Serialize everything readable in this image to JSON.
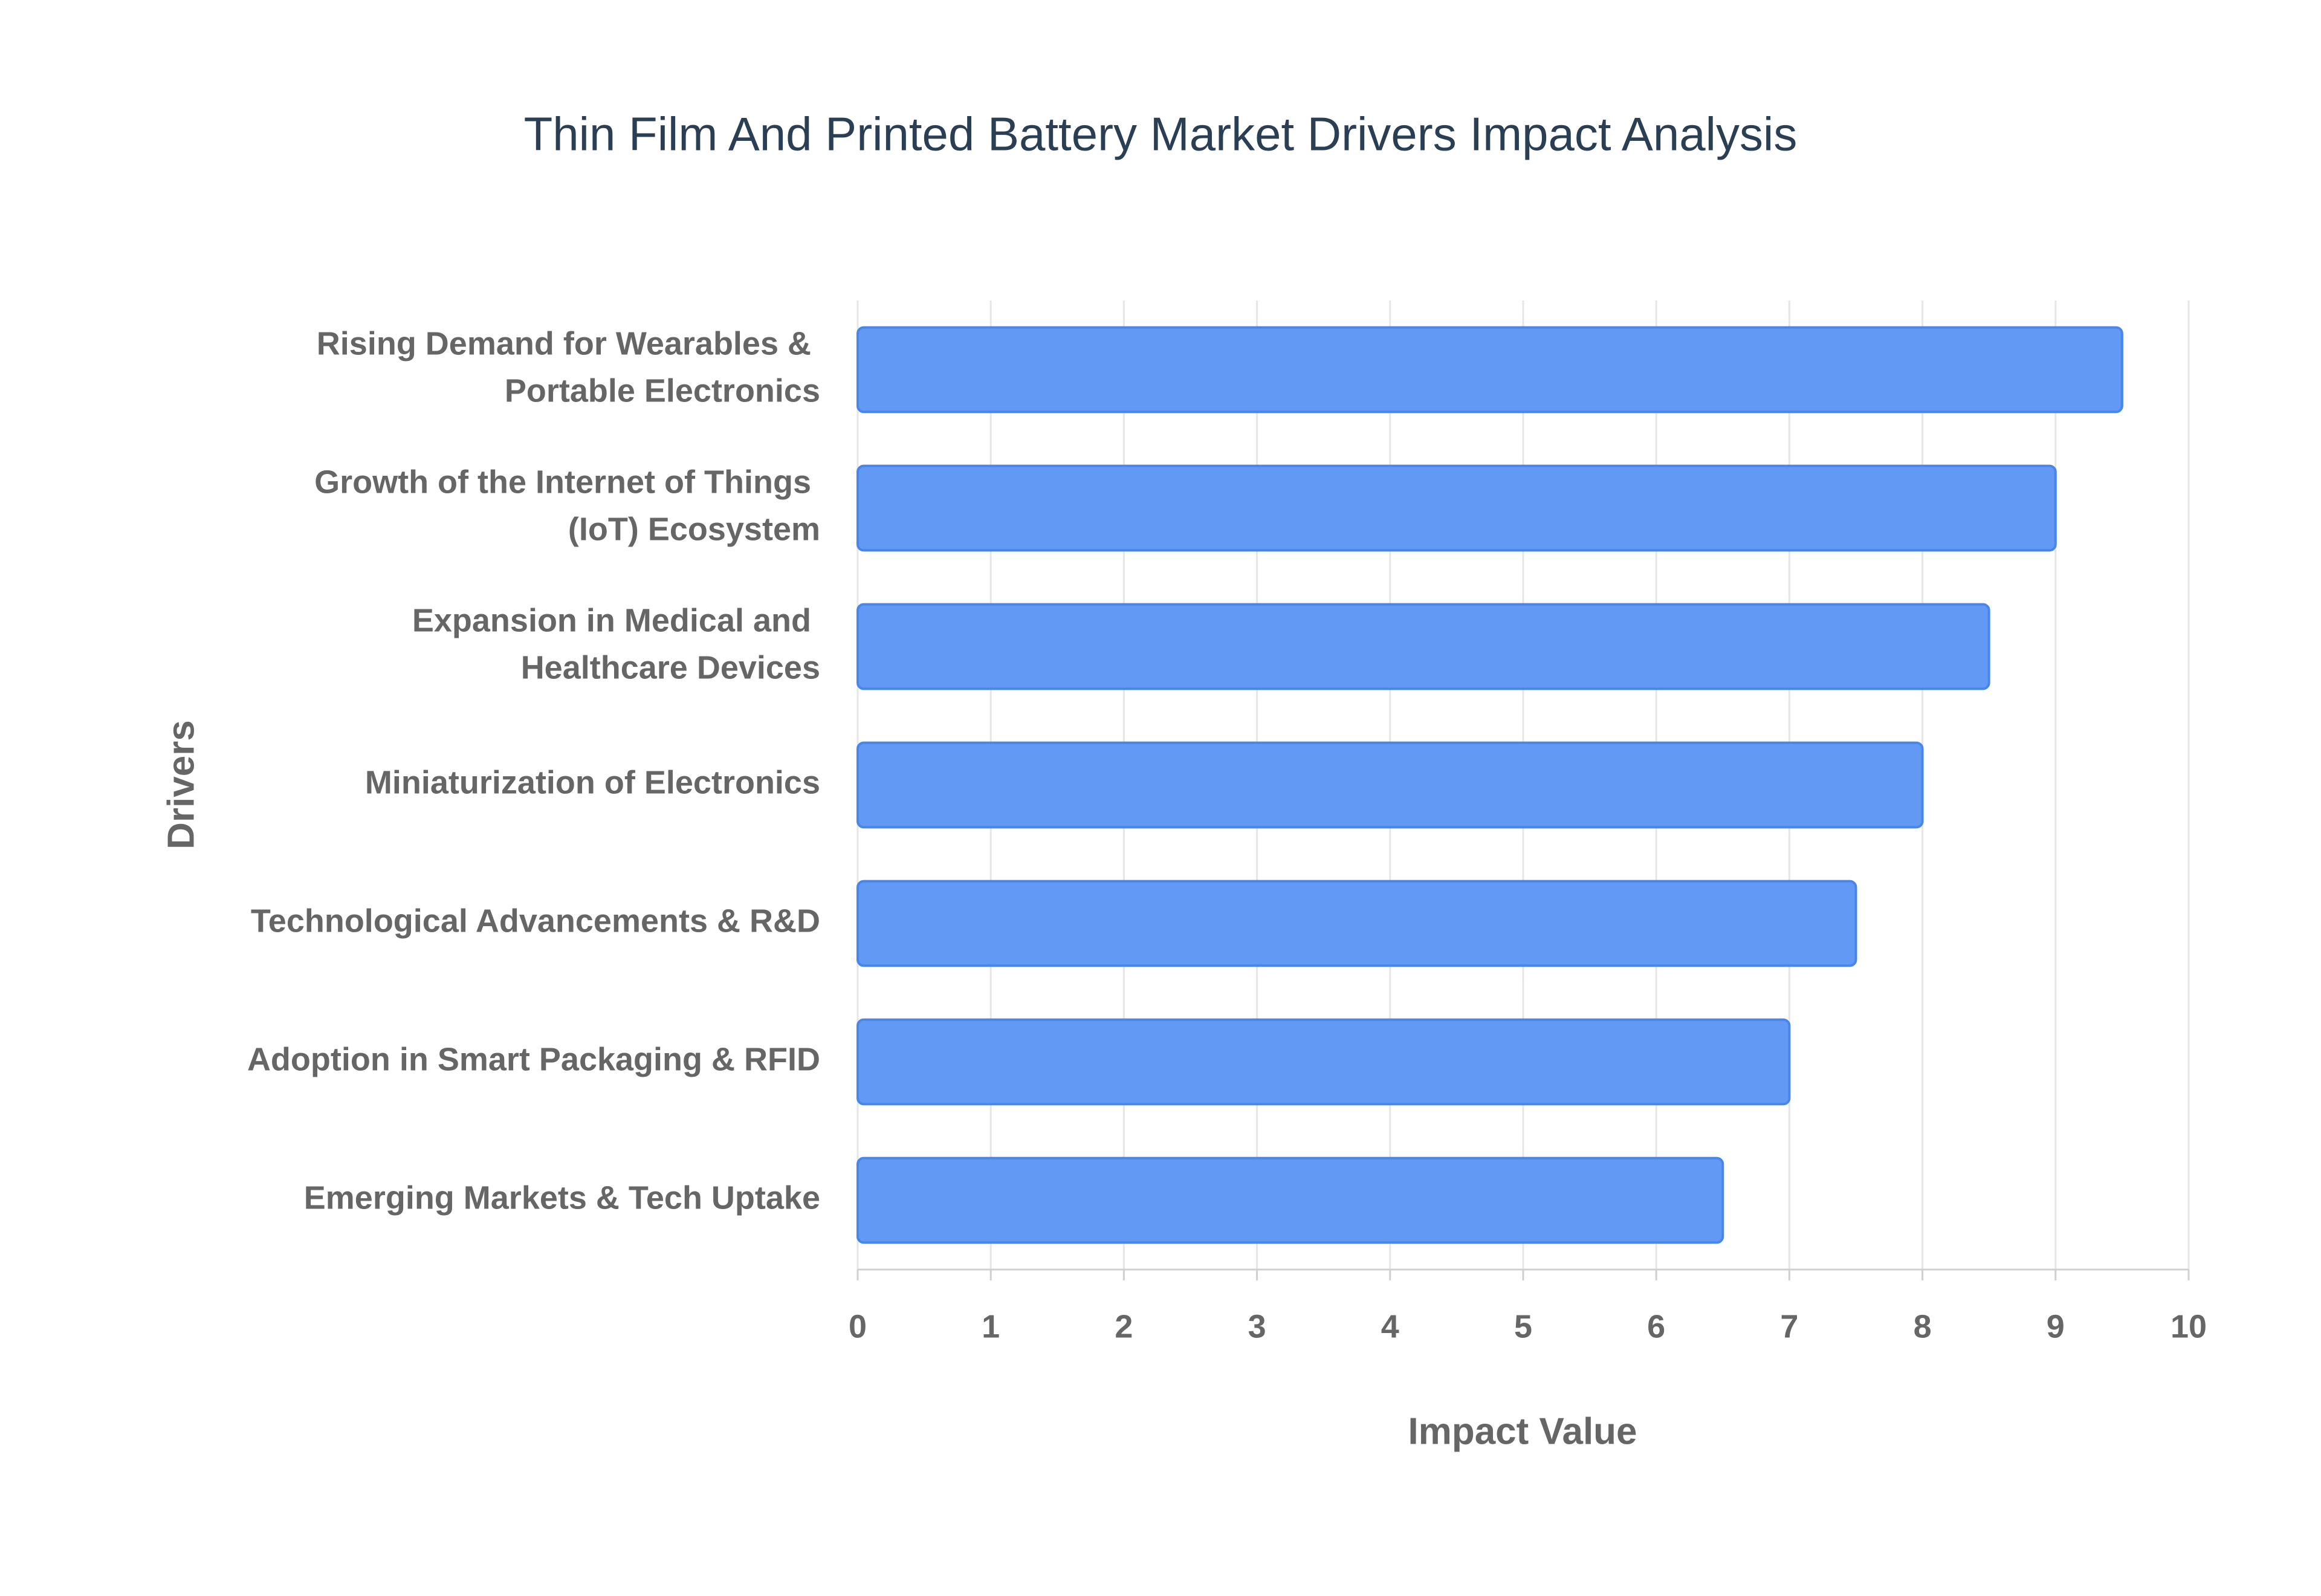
{
  "chart_data": {
    "type": "hbar",
    "title": "Thin Film And Printed Battery Market Drivers Impact Analysis",
    "x_label": "Impact Value",
    "y_label": "Drivers",
    "categories": [
      "Rising Demand for Wearables & Portable Electronics",
      "Growth of the Internet of Things (IoT) Ecosystem",
      "Expansion in Medical and Healthcare Devices",
      "Miniaturization of Electronics",
      "Technological Advancements & R&D",
      "Adoption in Smart Packaging & RFID",
      "Emerging Markets & Tech Uptake"
    ],
    "values": [
      9.5,
      9,
      8.5,
      8,
      7.5,
      7,
      6.5
    ],
    "color": "#6299f4",
    "edge_color": "#4a86e8",
    "xlim": [
      0,
      10
    ],
    "xticks": [
      0,
      1,
      2,
      3,
      4,
      5,
      6,
      7,
      8,
      9,
      10
    ],
    "grid": true
  }
}
